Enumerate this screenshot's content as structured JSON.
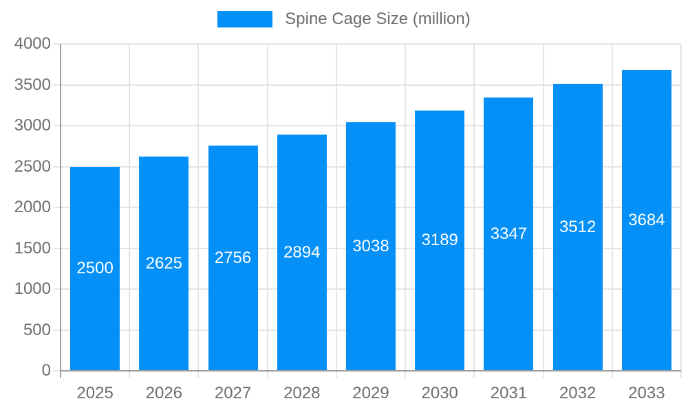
{
  "legend": {
    "label": "Spine Cage Size (million)"
  },
  "chart_data": {
    "type": "bar",
    "title": "Spine Cage Size (million)",
    "categories": [
      "2025",
      "2026",
      "2027",
      "2028",
      "2029",
      "2030",
      "2031",
      "2032",
      "2033"
    ],
    "values": [
      2500,
      2625,
      2756,
      2894,
      3038,
      3189,
      3347,
      3512,
      3684
    ],
    "series_name": "Spine Cage Size (million)",
    "xlabel": "",
    "ylabel": "",
    "ylim": [
      0,
      4000
    ],
    "ytick_step": 500,
    "ytick_labels": [
      "0",
      "500",
      "1000",
      "1500",
      "2000",
      "2500",
      "3000",
      "3500",
      "4000"
    ],
    "grid": true,
    "legend_position": "top",
    "bar_labels": "centered-inside-white",
    "colors": {
      "bar": "#0590f8",
      "bar_label_text": "#ffffff",
      "axis_text": "#6d6d6d",
      "grid_line": "#e4e4e4",
      "axis_line": "#9c9c9c",
      "background": "#ffffff"
    }
  }
}
